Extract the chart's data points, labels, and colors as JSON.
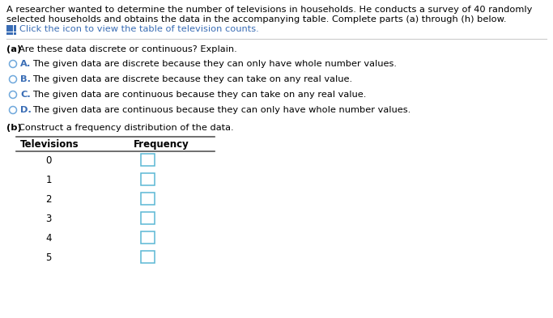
{
  "title_line1": "A researcher wanted to determine the number of televisions in households. He conducts a survey of 40 randomly",
  "title_line2": "selected households and obtains the data in the accompanying table. Complete parts (a) through (h) below.",
  "icon_text": "Click the icon to view the table of television counts.",
  "section_a_header": "(a) Are these data discrete or continuous? Explain.",
  "options": [
    {
      "label": "A.",
      "text": "  The given data are discrete because they can only have whole number values."
    },
    {
      "label": "B.",
      "text": "  The given data are discrete because they can take on any real value."
    },
    {
      "label": "C.",
      "text": "  The given data are continuous because they can take on any real value."
    },
    {
      "label": "D.",
      "text": "  The given data are continuous because they can only have whole number values."
    }
  ],
  "section_b_header": "(b) Construct a frequency distribution of the data.",
  "table_col1": "Televisions",
  "table_col2": "Frequency",
  "table_rows": [
    0,
    1,
    2,
    3,
    4,
    5
  ],
  "bg_color": "#ffffff",
  "text_color": "#000000",
  "blue_color": "#3a6db5",
  "circle_color": "#6fa8dc",
  "box_color": "#5bb8d4",
  "separator_color": "#cccccc",
  "table_line_color": "#555555"
}
